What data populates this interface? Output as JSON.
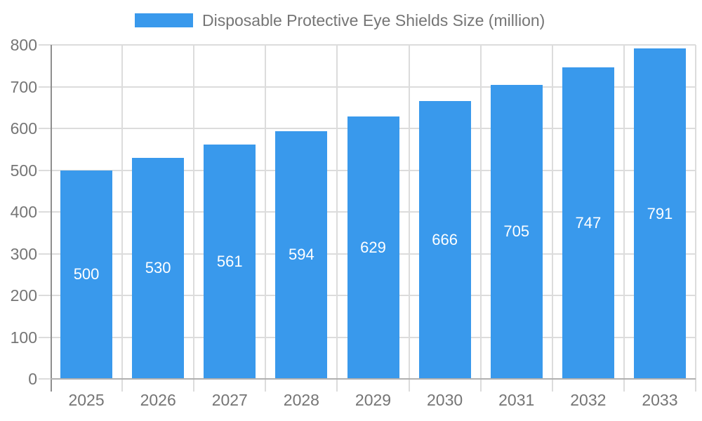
{
  "chart_data": {
    "type": "bar",
    "categories": [
      "2025",
      "2026",
      "2027",
      "2028",
      "2029",
      "2030",
      "2031",
      "2032",
      "2033"
    ],
    "values": [
      500,
      530,
      561,
      594,
      629,
      666,
      705,
      747,
      791
    ],
    "title": "",
    "legend": "Disposable Protective Eye Shields Size (million)",
    "xlabel": "",
    "ylabel": "",
    "ylim": [
      0,
      800
    ],
    "ytick_interval": 100,
    "ytick_labels": [
      "0",
      "100",
      "200",
      "300",
      "400",
      "500",
      "600",
      "700",
      "800"
    ],
    "grid": true,
    "legend_position": "top",
    "value_labels_inside_bars": true
  },
  "colors": {
    "bar": "#3999EC",
    "axis_text": "#757575",
    "bar_value_text": "#ffffff",
    "gridline": "#dcdcdc",
    "y_axis_line": "#8e8e8e",
    "x_axis_line": "#b0b0b0",
    "tick": "#d4d4d4",
    "background": "#ffffff"
  }
}
